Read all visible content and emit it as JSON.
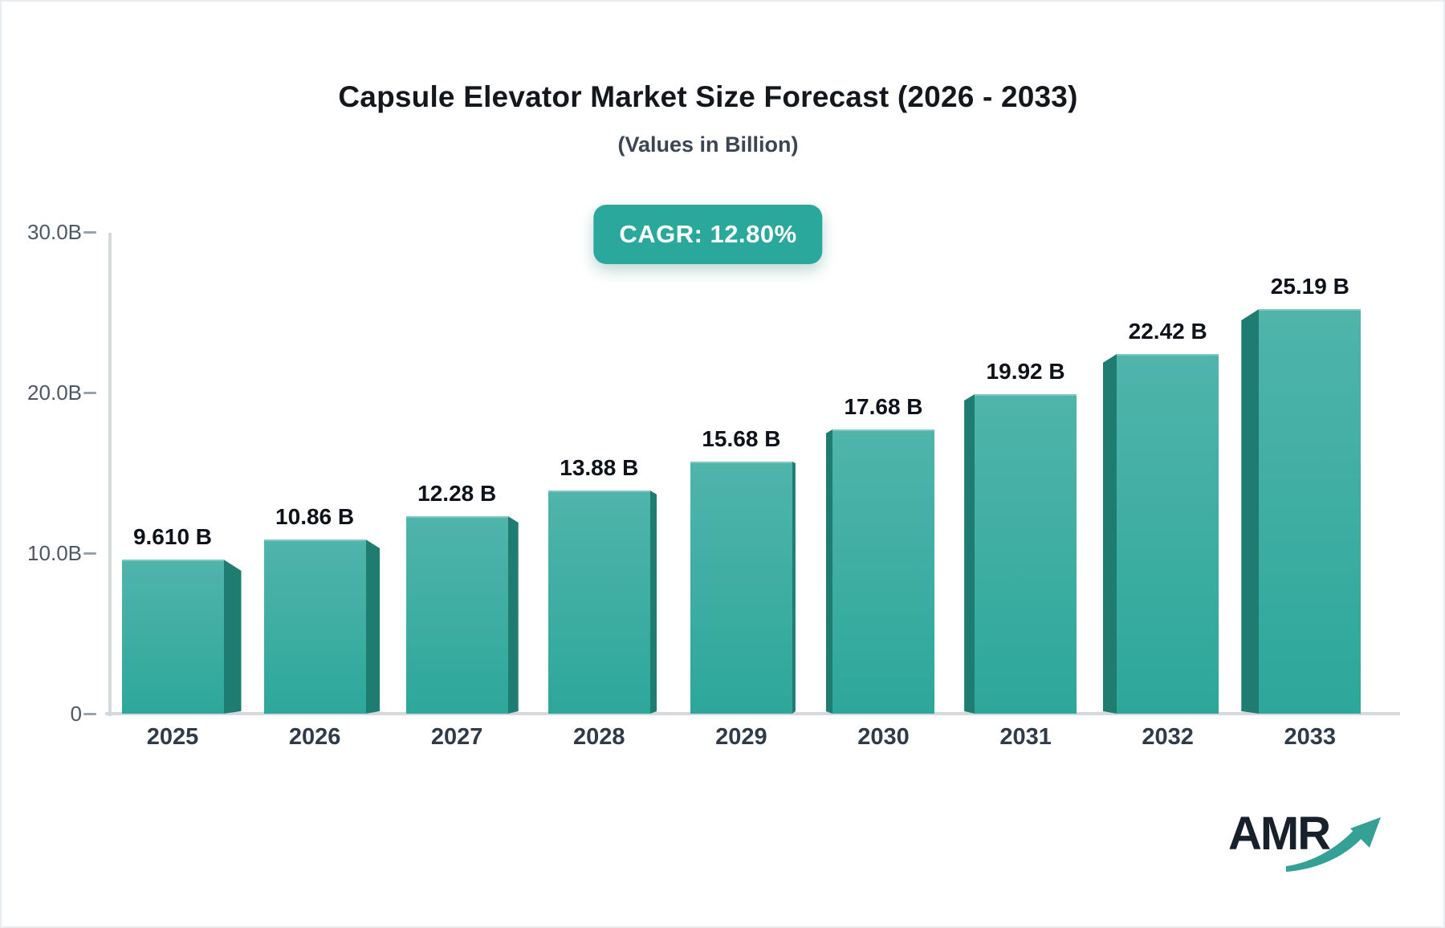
{
  "header": {
    "title": "Capsule Elevator Market Size Forecast (2026 - 2033)",
    "subtitle": "(Values in Billion)"
  },
  "cagr_badge": {
    "label": "CAGR: 12.80%",
    "bg_color": "#2aa89c",
    "text_color": "#ffffff"
  },
  "logo": {
    "text": "AMR",
    "text_color": "#18212b",
    "arrow_color": "#35a096"
  },
  "chart_data": {
    "type": "bar",
    "title": "Capsule Elevator Market Size Forecast (2026 - 2033)",
    "subtitle": "(Values in Billion)",
    "cagr_annotation": "CAGR: 12.80%",
    "categories": [
      "2025",
      "2026",
      "2027",
      "2028",
      "2029",
      "2030",
      "2031",
      "2032",
      "2033"
    ],
    "values": [
      9.61,
      10.86,
      12.28,
      13.88,
      15.68,
      17.68,
      19.92,
      22.42,
      25.19
    ],
    "value_labels": [
      "9.610 B",
      "10.86 B",
      "12.28 B",
      "13.88 B",
      "15.68 B",
      "17.68 B",
      "19.92 B",
      "22.42 B",
      "25.19 B"
    ],
    "ytick_labels": [
      "30.0B",
      "20.0B",
      "10.0B",
      "0"
    ],
    "ytick_values": [
      30,
      20,
      10,
      0
    ],
    "ylim": [
      0,
      30
    ],
    "xlabel": "",
    "ylabel": "",
    "grid": false,
    "legend": false,
    "bar_color_top": "#50b4ab",
    "bar_color_bottom": "#2da79a",
    "bar_side_color": "#1e7c71",
    "axis_color": "#d4d9dd"
  }
}
